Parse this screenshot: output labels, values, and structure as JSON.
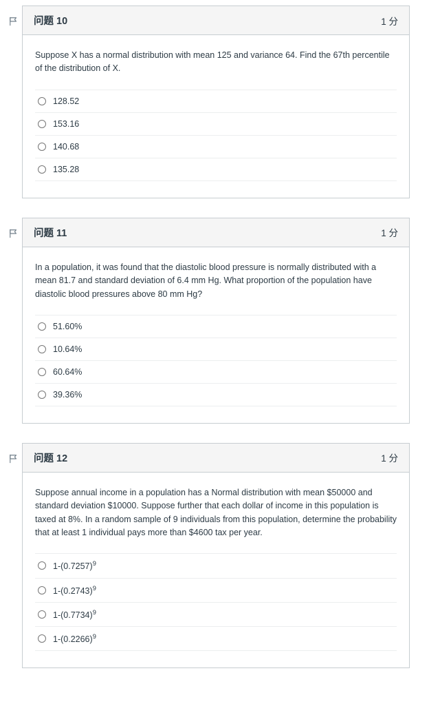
{
  "points_label": "1 分",
  "flag_color_stroke": "#73818c",
  "questions": [
    {
      "title": "问题 10",
      "text": "Suppose X has a normal distribution with mean 125 and variance 64. Find the 67th percentile of the distribution of X.",
      "options": [
        "128.52",
        "153.16",
        "140.68",
        "135.28"
      ]
    },
    {
      "title": "问题 11",
      "text": "In a population, it was found that the diastolic blood pressure is normally distributed with a mean 81.7 and standard deviation of 6.4 mm Hg. What proportion of the population have diastolic blood pressures above 80 mm Hg?",
      "options": [
        "51.60%",
        "10.64%",
        "60.64%",
        "39.36%"
      ]
    },
    {
      "title": "问题 12",
      "text": "Suppose annual income in a population has a Normal distribution with mean $50000 and standard deviation $10000. Suppose further that each dollar of income in this population is taxed at 8%. In a random sample of 9 individuals from this population, determine the probability that at least 1 individual pays more than $4600 tax per year.",
      "options_html": [
        "1-(0.7257)<sup>9</sup>",
        "1-(0.2743)<sup>9</sup>",
        "1-(0.7734)<sup>9</sup>",
        "1-(0.2266)<sup>9</sup>"
      ]
    }
  ]
}
